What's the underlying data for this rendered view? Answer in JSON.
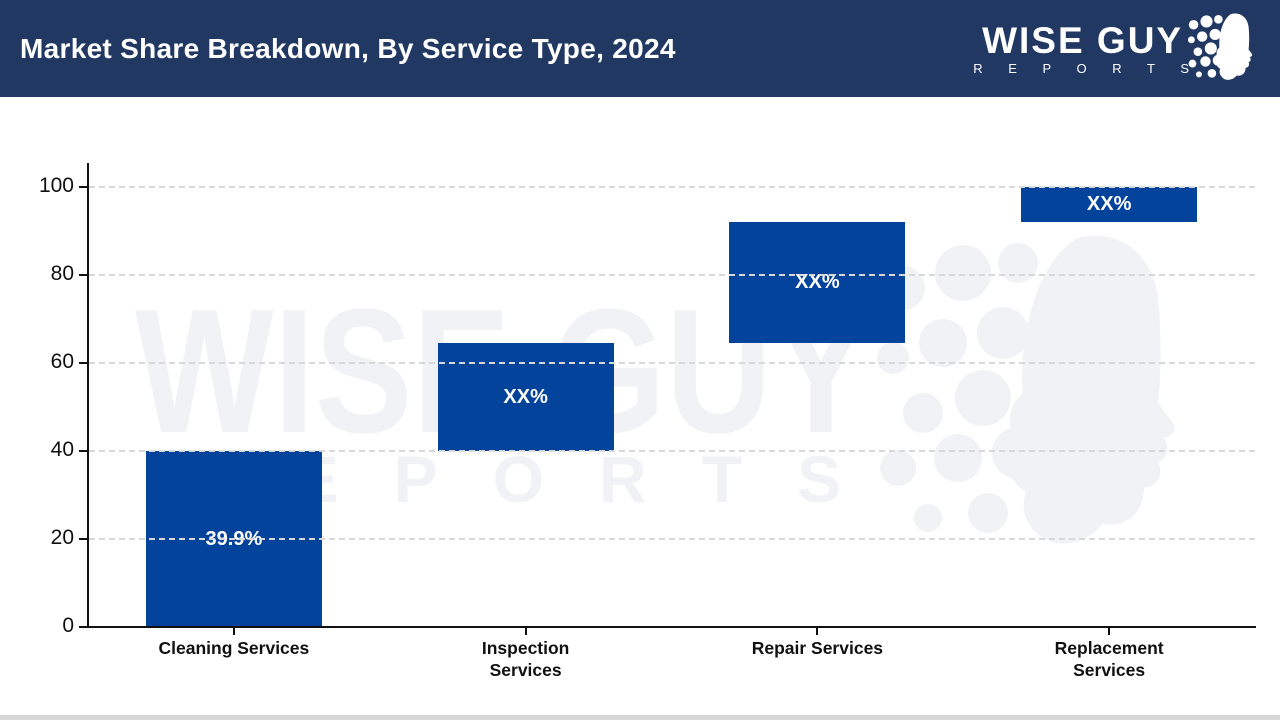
{
  "header": {
    "title": "Market Share Breakdown, By Service Type, 2024",
    "bg_color": "#213863",
    "logo": {
      "line1": "WISE GUY",
      "line2": "R E P O R T S"
    }
  },
  "watermark": {
    "line1": "WISE GUY",
    "line2": "REPORTS",
    "color": "#f1f2f5"
  },
  "chart_data": {
    "type": "bar",
    "subtype": "waterfall",
    "title": "Market Share Breakdown, By Service Type, 2024",
    "categories": [
      "Cleaning Services",
      "Inspection Services",
      "Repair Services",
      "Replacement Services"
    ],
    "tick_labels": [
      "Cleaning Services",
      "Inspection\nServices",
      "Repair Services",
      "Replacement\nServices"
    ],
    "segments": [
      {
        "category": "Cleaning Services",
        "start": 0,
        "end": 39.9,
        "label": "39.9%"
      },
      {
        "category": "Inspection Services",
        "start": 39.9,
        "end": 64.5,
        "label": "XX%"
      },
      {
        "category": "Repair Services",
        "start": 64.5,
        "end": 92,
        "label": "XX%"
      },
      {
        "category": "Replacement Services",
        "start": 92,
        "end": 100,
        "label": "XX%"
      }
    ],
    "ylim": [
      0,
      100
    ],
    "yticks": [
      0,
      20,
      40,
      60,
      80,
      100
    ],
    "grid": "horizontal-dashed",
    "gridline_color": "#d8d8d8",
    "bar_color": "#04439c",
    "bar_label_color": "#ffffff",
    "axis_color": "#111111",
    "legend": "none"
  }
}
